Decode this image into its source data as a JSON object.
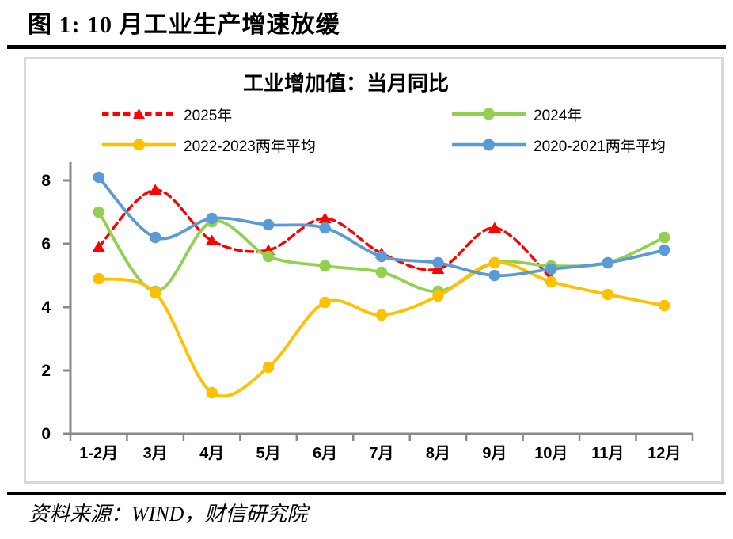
{
  "page": {
    "title": "图 1: 10 月工业生产增速放缓",
    "source_note": "资料来源：WIND，财信研究院"
  },
  "chart_data": {
    "type": "line",
    "title": "工业增加值：当月同比",
    "categories": [
      "1-2月",
      "3月",
      "4月",
      "5月",
      "6月",
      "7月",
      "8月",
      "9月",
      "10月",
      "11月",
      "12月"
    ],
    "series": [
      {
        "name": "2025年",
        "color": "#fe0000",
        "line_style": "dashed",
        "marker": "triangle",
        "values": [
          5.9,
          7.7,
          6.1,
          5.8,
          6.8,
          5.7,
          5.2,
          6.5,
          4.9,
          null,
          null
        ]
      },
      {
        "name": "2024年",
        "color": "#92d050",
        "line_style": "solid",
        "marker": "circle",
        "values": [
          7.0,
          4.5,
          6.7,
          5.6,
          5.3,
          5.1,
          4.5,
          5.4,
          5.3,
          5.4,
          6.2
        ]
      },
      {
        "name": "2022-2023两年平均",
        "color": "#ffc000",
        "line_style": "solid",
        "marker": "circle",
        "values": [
          4.9,
          4.45,
          1.3,
          2.1,
          4.15,
          3.75,
          4.35,
          5.4,
          4.8,
          4.4,
          4.05
        ]
      },
      {
        "name": "2020-2021两年平均",
        "color": "#5b9bd5",
        "line_style": "solid",
        "marker": "circle",
        "values": [
          8.1,
          6.2,
          6.8,
          6.6,
          6.5,
          5.6,
          5.4,
          5.0,
          5.2,
          5.4,
          5.8
        ]
      }
    ],
    "ylim": [
      0,
      8.5
    ],
    "yticks": [
      0,
      2,
      4,
      6,
      8
    ],
    "xlabel": "",
    "ylabel": "",
    "legend_position": "top",
    "grid": false,
    "axis_color": "#898989",
    "text_color": "#000000"
  }
}
